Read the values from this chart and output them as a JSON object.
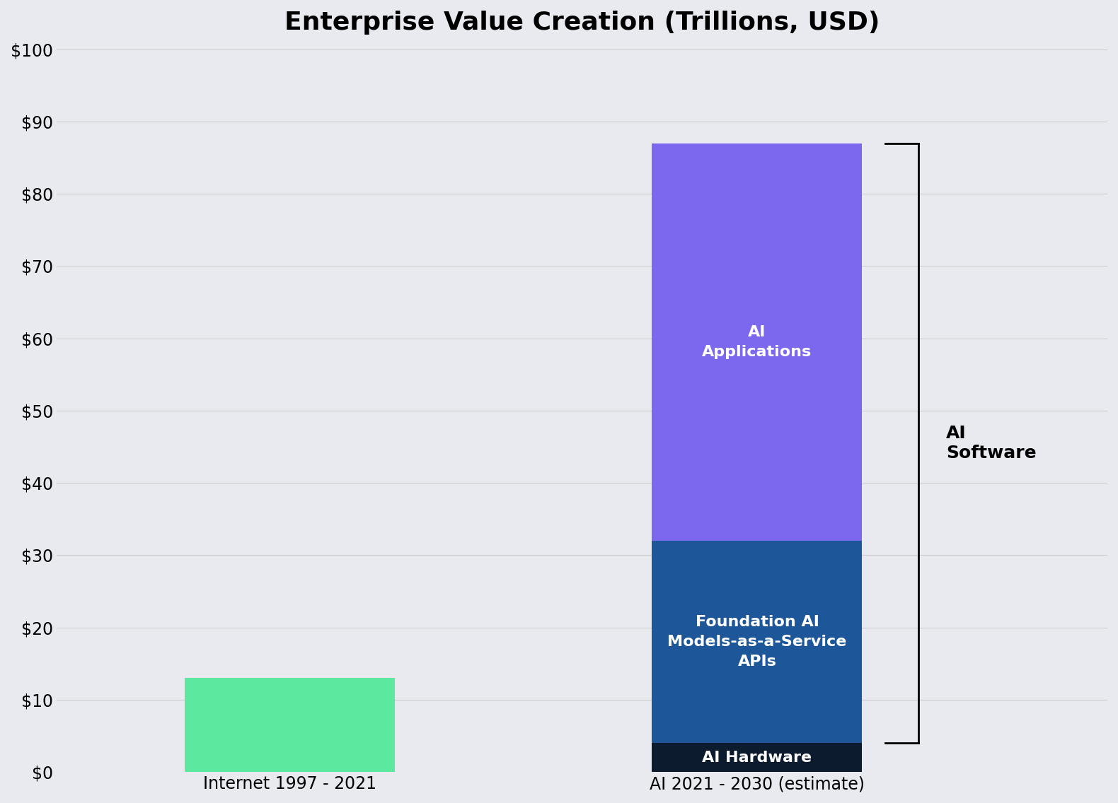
{
  "title": "Enterprise Value Creation (Trillions, USD)",
  "title_fontsize": 26,
  "title_fontweight": "bold",
  "background_color": "#e8eaf0",
  "categories": [
    "Internet 1997 - 2021",
    "AI 2021 - 2030 (estimate)"
  ],
  "bar_width": 0.45,
  "internet_value": 13,
  "internet_color": "#5de8a0",
  "ai_hardware_value": 4,
  "ai_hardware_color": "#0d1b2e",
  "ai_foundation_value": 28,
  "ai_foundation_color": "#1e5799",
  "ai_applications_value": 55,
  "ai_applications_color": "#7b68ee",
  "ylim": [
    0,
    100
  ],
  "yticks": [
    0,
    10,
    20,
    30,
    40,
    50,
    60,
    70,
    80,
    90,
    100
  ],
  "ytick_labels": [
    "$0",
    "$10",
    "$20",
    "$30",
    "$40",
    "$50",
    "$60",
    "$70",
    "$80",
    "$90",
    "$100"
  ],
  "grid_color": "#cccccc",
  "tick_fontsize": 17,
  "bar_label_fontsize": 16,
  "bar_label_color": "#ffffff",
  "bar_label_fontweight": "bold",
  "bracket_label": "AI\nSoftware",
  "bracket_label_fontsize": 18,
  "bracket_label_fontweight": "bold",
  "bracket_color": "#000000"
}
